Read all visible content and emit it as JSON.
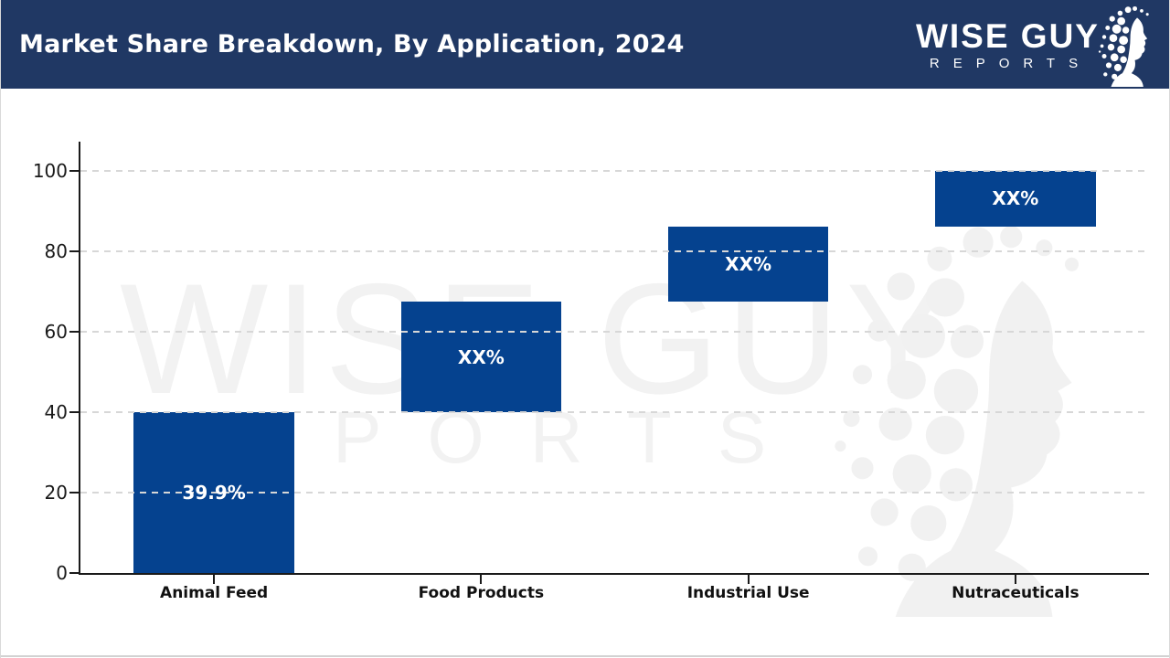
{
  "header": {
    "title": "Market Share Breakdown, By Application, 2024",
    "logo": {
      "line1": "WISE GUY",
      "line2": "REPORTS"
    }
  },
  "watermark": {
    "line1": "WISE GUY",
    "line2": "REPORTS"
  },
  "chart_data": {
    "type": "bar",
    "subtype": "waterfall",
    "title": "Market Share Breakdown, By Application, 2024",
    "categories": [
      "Animal Feed",
      "Food Products",
      "Industrial Use",
      "Nutraceuticals"
    ],
    "segments": [
      {
        "category": "Animal Feed",
        "start": 0,
        "end": 39.9,
        "label": "39.9%"
      },
      {
        "category": "Food Products",
        "start": 39.9,
        "end": 67.5,
        "label": "XX%"
      },
      {
        "category": "Industrial Use",
        "start": 67.5,
        "end": 86.2,
        "label": "XX%"
      },
      {
        "category": "Nutraceuticals",
        "start": 86.2,
        "end": 100,
        "label": "XX%"
      }
    ],
    "ylim": [
      0,
      100
    ],
    "yticks": [
      0,
      20,
      40,
      60,
      80,
      100
    ],
    "xlabel": "",
    "ylabel": "",
    "grid": "horizontal-dashed",
    "legend": "none"
  },
  "colors": {
    "header_bg": "#203864",
    "bar": "#05428f",
    "bar_label": "#ffffff",
    "axis": "#1a1a1a",
    "grid": "#d7d7d7",
    "watermark": "#f2f2f2"
  }
}
